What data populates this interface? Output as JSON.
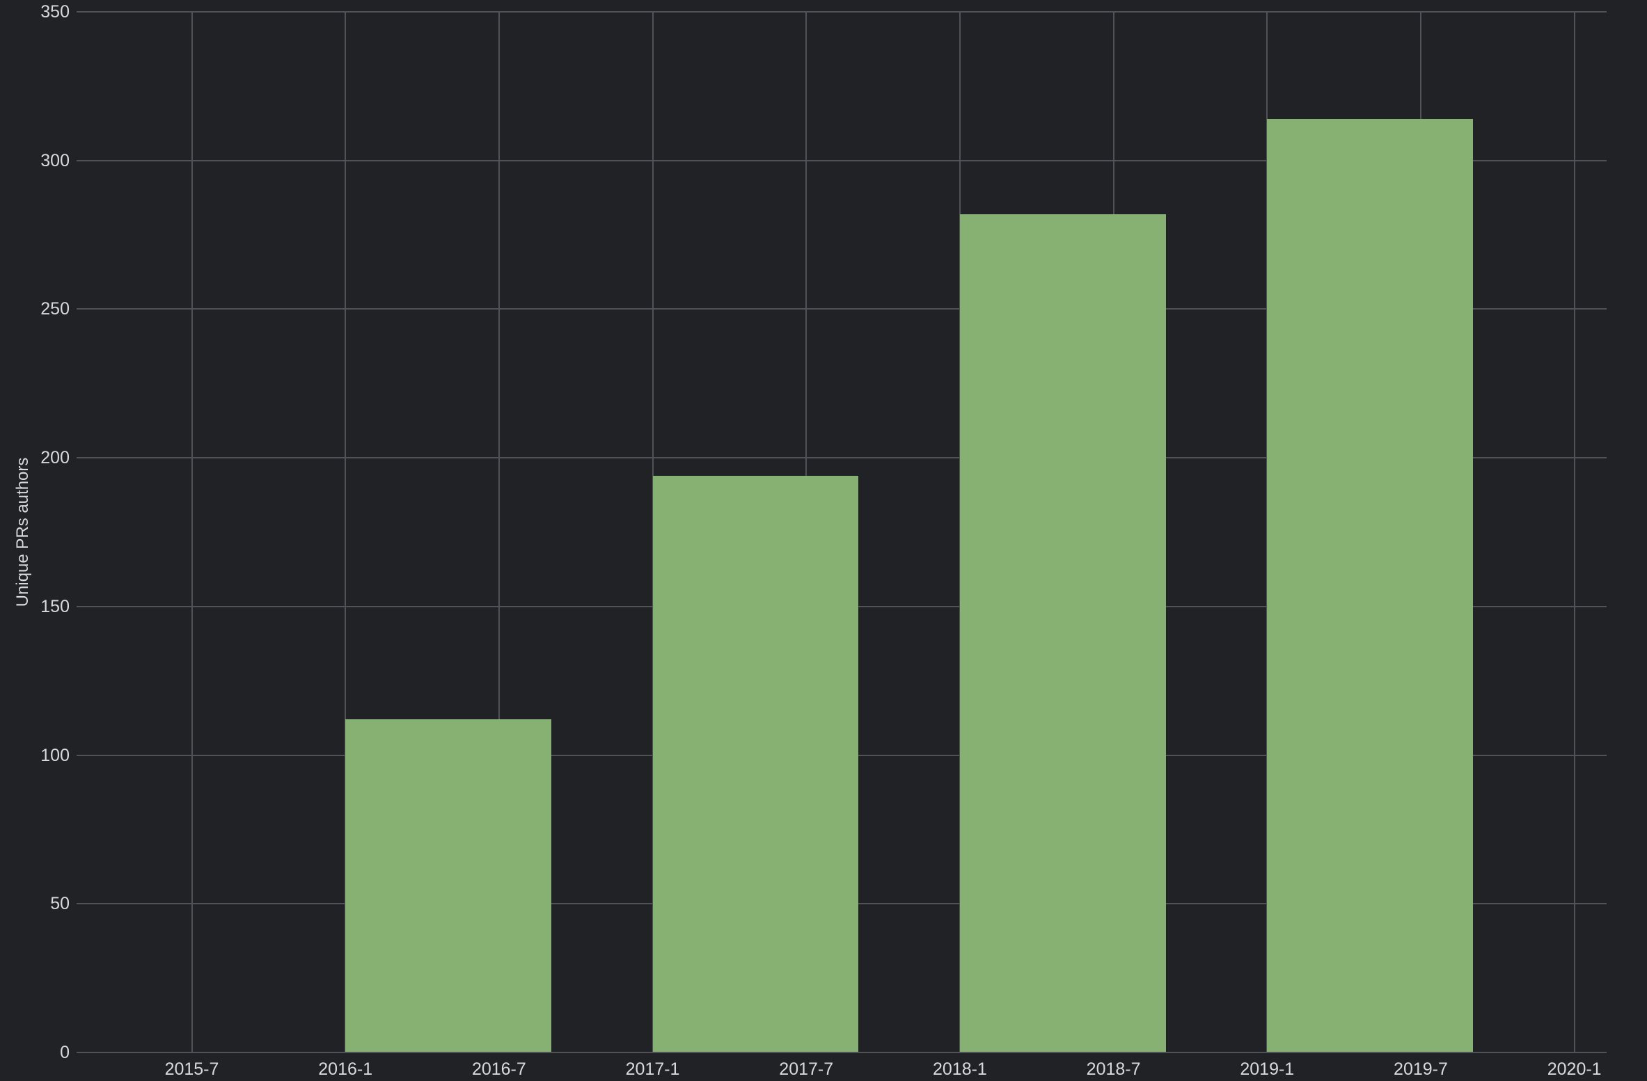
{
  "chart_data": {
    "type": "bar",
    "title": "",
    "xlabel": "",
    "ylabel": "Unique PRs authors",
    "categories": [
      "2016",
      "2017",
      "2018",
      "2019"
    ],
    "values": [
      112,
      194,
      282,
      314
    ],
    "series": [
      {
        "name": "Unique PRs authors",
        "values": [
          112,
          194,
          282,
          314
        ]
      }
    ],
    "bars": [
      {
        "category": "2016",
        "x_year": 2016.0,
        "value": 112
      },
      {
        "category": "2017",
        "x_year": 2017.0,
        "value": 194
      },
      {
        "category": "2018",
        "x_year": 2018.0,
        "value": 282
      },
      {
        "category": "2019",
        "x_year": 2019.0,
        "value": 314
      }
    ],
    "x_ticks": [
      {
        "pos": 2015.5,
        "label": "2015-7"
      },
      {
        "pos": 2016.0,
        "label": "2016-1"
      },
      {
        "pos": 2016.5,
        "label": "2016-7"
      },
      {
        "pos": 2017.0,
        "label": "2017-1"
      },
      {
        "pos": 2017.5,
        "label": "2017-7"
      },
      {
        "pos": 2018.0,
        "label": "2018-1"
      },
      {
        "pos": 2018.5,
        "label": "2018-7"
      },
      {
        "pos": 2019.0,
        "label": "2019-1"
      },
      {
        "pos": 2019.5,
        "label": "2019-7"
      },
      {
        "pos": 2020.0,
        "label": "2020-1"
      }
    ],
    "y_ticks": [
      0,
      50,
      100,
      150,
      200,
      250,
      300,
      350
    ],
    "ylim": [
      0,
      350
    ],
    "xlim_years": [
      2015.125,
      2020.105
    ],
    "bar_width_years": 0.67,
    "grid": true,
    "legend_position": "none",
    "colors": {
      "background": "#212226",
      "grid": "#515257",
      "text": "#d8d9da",
      "bar": "#87b073"
    }
  }
}
